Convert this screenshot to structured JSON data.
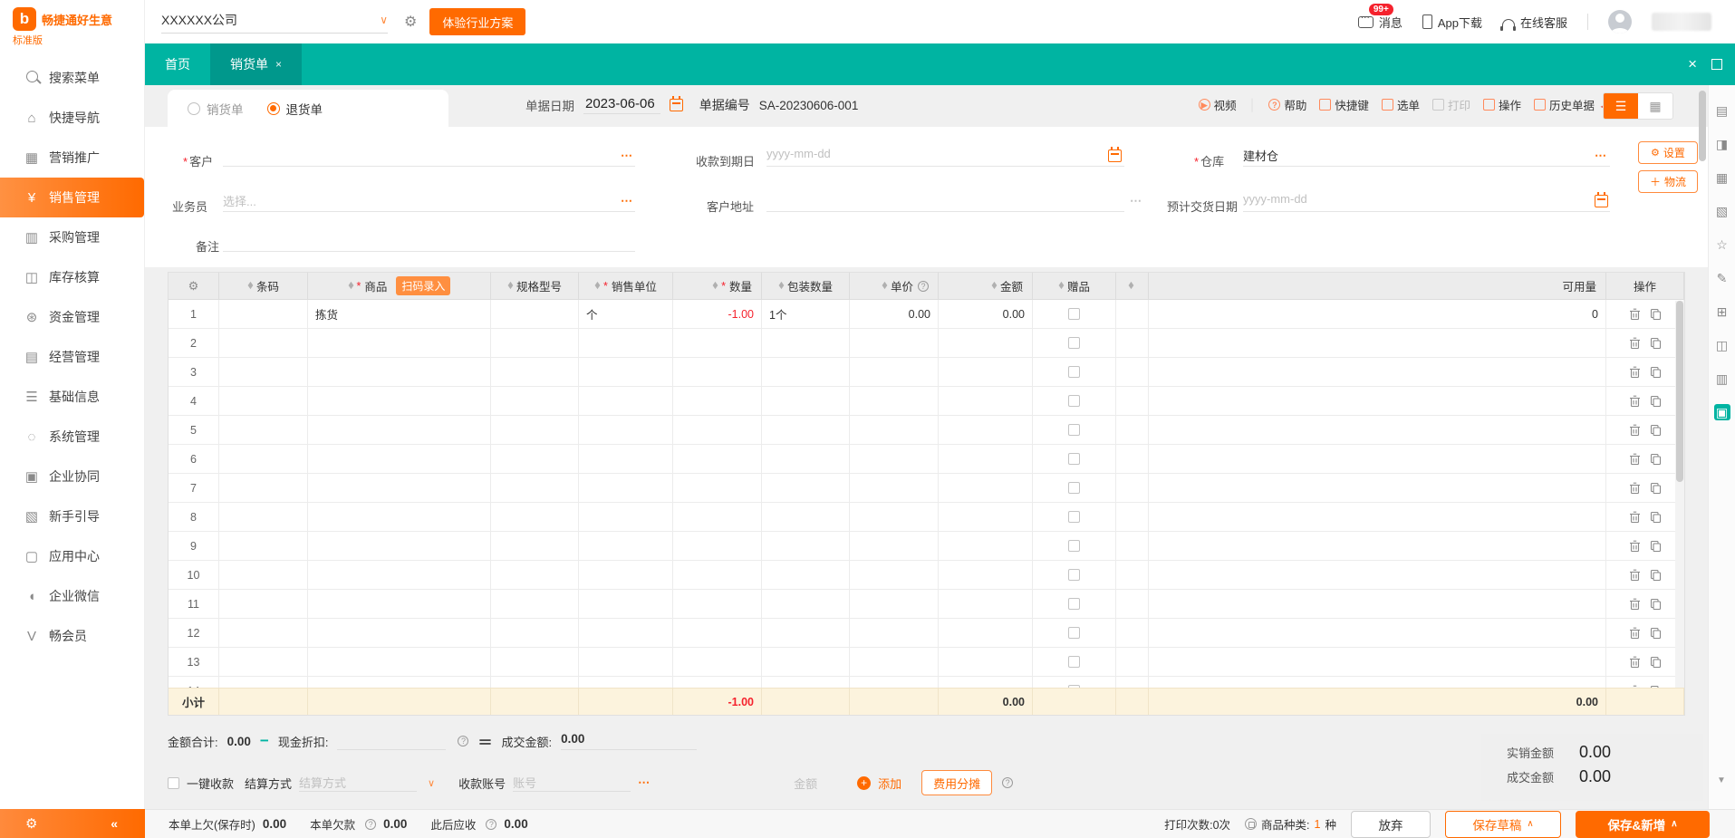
{
  "brand": {
    "name": "畅捷通好生意",
    "edition": "标准版",
    "logo_letter": "b"
  },
  "topbar": {
    "company": "XXXXXX公司",
    "trial_button": "体验行业方案",
    "messages_label": "消息",
    "messages_badge": "99+",
    "app_download_label": "App下载",
    "service_label": "在线客服"
  },
  "tabs": {
    "home": "首页",
    "current": "销货单"
  },
  "sidebar": {
    "items": [
      {
        "label": "搜索菜单",
        "icon": "search",
        "active": false
      },
      {
        "label": "快捷导航",
        "icon": "home",
        "active": false
      },
      {
        "label": "营销推广",
        "icon": "gift",
        "active": false
      },
      {
        "label": "销售管理",
        "icon": "sale",
        "active": true
      },
      {
        "label": "采购管理",
        "icon": "purchase",
        "active": false
      },
      {
        "label": "库存核算",
        "icon": "stock",
        "active": false
      },
      {
        "label": "资金管理",
        "icon": "fund",
        "active": false
      },
      {
        "label": "经营管理",
        "icon": "biz",
        "active": false
      },
      {
        "label": "基础信息",
        "icon": "info",
        "active": false
      },
      {
        "label": "系统管理",
        "icon": "sys",
        "active": false
      },
      {
        "label": "企业协同",
        "icon": "collab",
        "active": false
      },
      {
        "label": "新手引导",
        "icon": "guide",
        "active": false
      },
      {
        "label": "应用中心",
        "icon": "apps",
        "active": false
      },
      {
        "label": "企业微信",
        "icon": "wechat",
        "active": false
      },
      {
        "label": "畅会员",
        "icon": "vip",
        "active": false
      }
    ]
  },
  "docbar": {
    "radio_sale": "销货单",
    "radio_return": "退货单",
    "date_label": "单据日期",
    "date_value": "2023-06-06",
    "no_label": "单据编号",
    "no_value": "SA-20230606-001",
    "tools": [
      {
        "label": "视频",
        "icon": "play",
        "sep_after": true,
        "disabled": false
      },
      {
        "label": "帮助",
        "icon": "help",
        "sep_after": false,
        "disabled": false
      },
      {
        "label": "快捷键",
        "icon": "kbd",
        "sep_after": false,
        "disabled": false
      },
      {
        "label": "选单",
        "icon": "pick",
        "sep_after": false,
        "disabled": false
      },
      {
        "label": "打印",
        "icon": "print",
        "sep_after": false,
        "disabled": true
      },
      {
        "label": "操作",
        "icon": "grid",
        "sep_after": false,
        "disabled": false
      },
      {
        "label": "历史单据",
        "icon": "history",
        "sep_after": false,
        "disabled": false
      }
    ]
  },
  "form": {
    "customer_label": "客户",
    "due_label": "收款到期日",
    "due_placeholder": "yyyy-mm-dd",
    "warehouse_label": "仓库",
    "warehouse_value": "建材仓",
    "settings_button": "设置",
    "logistics_button": "物流",
    "salesman_label": "业务员",
    "salesman_placeholder": "选择...",
    "address_label": "客户地址",
    "delivery_label": "预计交货日期",
    "delivery_placeholder": "yyyy-mm-dd",
    "remark_label": "备注"
  },
  "table": {
    "scan_badge": "扫码录入",
    "columns": [
      {
        "label": "",
        "type": "gear",
        "sort": false,
        "required": false,
        "align": "c"
      },
      {
        "label": "条码",
        "sort": true,
        "required": false,
        "align": "l"
      },
      {
        "label": "商品",
        "sort": true,
        "required": true,
        "badge": true,
        "align": "l"
      },
      {
        "label": "规格型号",
        "sort": true,
        "required": false,
        "align": "l"
      },
      {
        "label": "销售单位",
        "sort": true,
        "required": true,
        "align": "l"
      },
      {
        "label": "数量",
        "sort": true,
        "required": true,
        "align": "r"
      },
      {
        "label": "包装数量",
        "sort": true,
        "required": false,
        "align": "l"
      },
      {
        "label": "单价",
        "sort": true,
        "required": false,
        "help": true,
        "align": "r"
      },
      {
        "label": "金额",
        "sort": true,
        "required": false,
        "align": "r"
      },
      {
        "label": "赠品",
        "sort": true,
        "required": false,
        "align": "l"
      },
      {
        "label": "",
        "sort": true,
        "required": false,
        "align": "c"
      },
      {
        "label": "可用量",
        "sort": false,
        "required": false,
        "align": "r"
      },
      {
        "label": "操作",
        "sort": false,
        "required": false,
        "align": "c"
      }
    ],
    "row_count": 14,
    "filled_row": {
      "num": "1",
      "product": "拣货",
      "unit": "个",
      "qty": "-1.00",
      "pack_qty": "1个",
      "price": "0.00",
      "amount": "0.00",
      "available": "0"
    },
    "subtotal": {
      "label": "小计",
      "qty": "-1.00",
      "amount": "0.00",
      "available": "0.00"
    }
  },
  "summary": {
    "total_label": "金额合计:",
    "total_value": "0.00",
    "discount_label": "现金折扣:",
    "deal_label": "成交金额:",
    "deal_value": "0.00"
  },
  "payment": {
    "onekey_label": "一键收款",
    "method_label": "结算方式",
    "method_placeholder": "结算方式",
    "account_label": "收款账号",
    "account_placeholder": "账号",
    "amount_label": "金额",
    "add_label": "添加",
    "share_button": "费用分摊"
  },
  "totals_box": {
    "actual_label": "实销金额",
    "actual_value": "0.00",
    "deal_label": "成交金额",
    "deal_value": "0.00"
  },
  "footer": {
    "owe_save_label": "本单上欠(保存时)",
    "owe_save_value": "0.00",
    "owe_label": "本单欠款",
    "owe_value": "0.00",
    "later_label": "此后应收",
    "later_value": "0.00",
    "print_label": "打印次数:0次",
    "kind_label": "商品种类:",
    "kind_count": "1",
    "kind_unit": "种",
    "abandon_button": "放弃",
    "draft_button": "保存草稿",
    "save_new_button": "保存&新增"
  },
  "colors": {
    "accent": "#ff6a00",
    "teal": "#00b4a2",
    "negative": "#f5222d"
  }
}
